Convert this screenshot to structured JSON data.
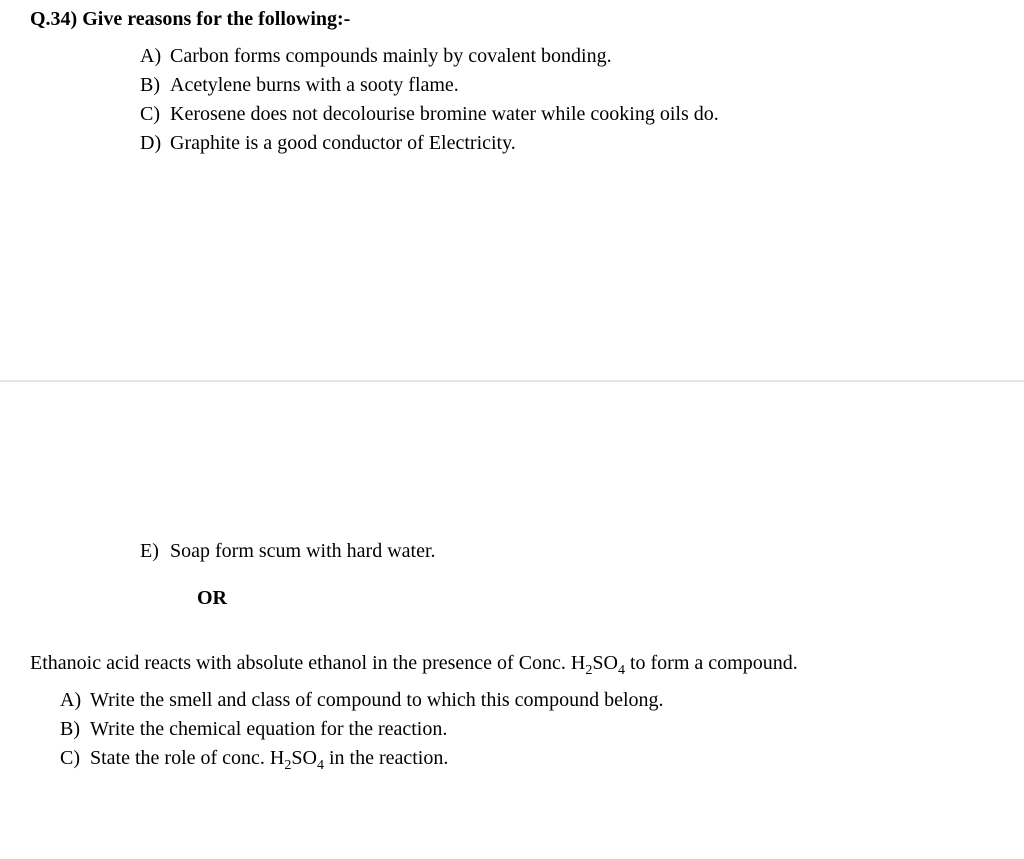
{
  "question": {
    "number": "Q.34)",
    "header": "Give reasons for the following:-",
    "options": [
      {
        "label": "A)",
        "text": "Carbon forms compounds mainly by covalent bonding."
      },
      {
        "label": "B)",
        "text": "Acetylene burns with a sooty flame."
      },
      {
        "label": "C)",
        "text": "Kerosene does not decolourise bromine water while cooking oils do."
      },
      {
        "label": "D)",
        "text": "Graphite is a good conductor of Electricity."
      }
    ],
    "option_e": {
      "label": "E)",
      "text": "Soap form scum with hard water."
    }
  },
  "divider": "OR",
  "alt_question": {
    "intro_part1": "Ethanoic acid reacts with absolute ethanol in the presence of Conc. H",
    "intro_sub1": "2",
    "intro_mid": "SO",
    "intro_sub2": "4",
    "intro_part2": " to form a compound.",
    "options": [
      {
        "label": "A)",
        "text": "Write the smell and class of compound to which this compound belong."
      },
      {
        "label": "B)",
        "text": "Write the chemical equation for the reaction."
      },
      {
        "label": "C)",
        "text_part1": "State the role of conc. H",
        "sub1": "2",
        "text_mid": "SO",
        "sub2": "4",
        "text_part2": " in the reaction."
      }
    ]
  }
}
